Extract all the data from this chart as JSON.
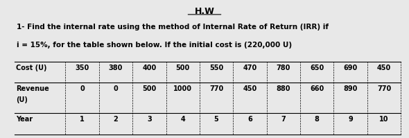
{
  "title": "H.W",
  "question_line1": "1- Find the internal rate using the method of Internal Rate of Return (IRR) if",
  "question_line2": "i = 15%, for the table shown below. If the initial cost is (220,000 U)",
  "table_headers": [
    "Cost (U)",
    "350",
    "380",
    "400",
    "500",
    "550",
    "470",
    "780",
    "650",
    "690",
    "450"
  ],
  "table_row2_label1": "Revenue",
  "table_row2_label2": "(U)",
  "table_row2_values": [
    "0",
    "0",
    "500",
    "1000",
    "770",
    "450",
    "880",
    "660",
    "890",
    "770"
  ],
  "table_row3_label": "Year",
  "table_row3_values": [
    "1",
    "2",
    "3",
    "4",
    "5",
    "6",
    "7",
    "8",
    "9",
    "10"
  ],
  "bg_color": "#e8e8e8",
  "text_color": "#000000",
  "font_size_title": 9,
  "font_size_text": 7.5,
  "font_size_table": 7.0
}
